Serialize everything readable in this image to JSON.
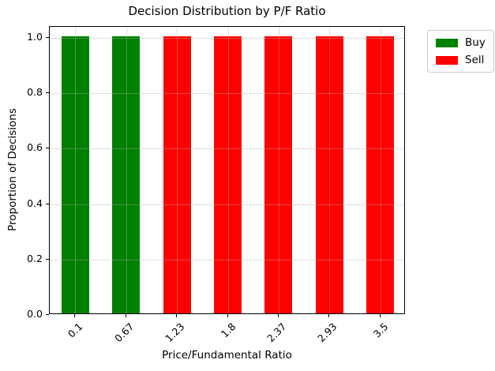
{
  "chart_data": {
    "type": "bar",
    "title": "Decision Distribution by P/F Ratio",
    "xlabel": "Price/Fundamental Ratio",
    "ylabel": "Proportion of Decisions",
    "categories": [
      "0.1",
      "0.67",
      "1.23",
      "1.8",
      "2.37",
      "2.93",
      "3.5"
    ],
    "series": [
      {
        "name": "Buy",
        "color": "#008000",
        "values": [
          1.0,
          1.0,
          0,
          0,
          0,
          0,
          0
        ]
      },
      {
        "name": "Sell",
        "color": "#ff0000",
        "values": [
          0,
          0,
          1.0,
          1.0,
          1.0,
          1.0,
          1.0
        ]
      }
    ],
    "stacked": true,
    "ylim": [
      0,
      1.04
    ],
    "yticks": [
      {
        "label": "0.0",
        "value": 0.0
      },
      {
        "label": "0.2",
        "value": 0.2
      },
      {
        "label": "0.4",
        "value": 0.4
      },
      {
        "label": "0.6",
        "value": 0.6
      },
      {
        "label": "0.8",
        "value": 0.8
      },
      {
        "label": "1.0",
        "value": 1.0
      }
    ],
    "grid": true,
    "legend_position": "upper right outside",
    "xtick_rotation_deg": 45
  }
}
